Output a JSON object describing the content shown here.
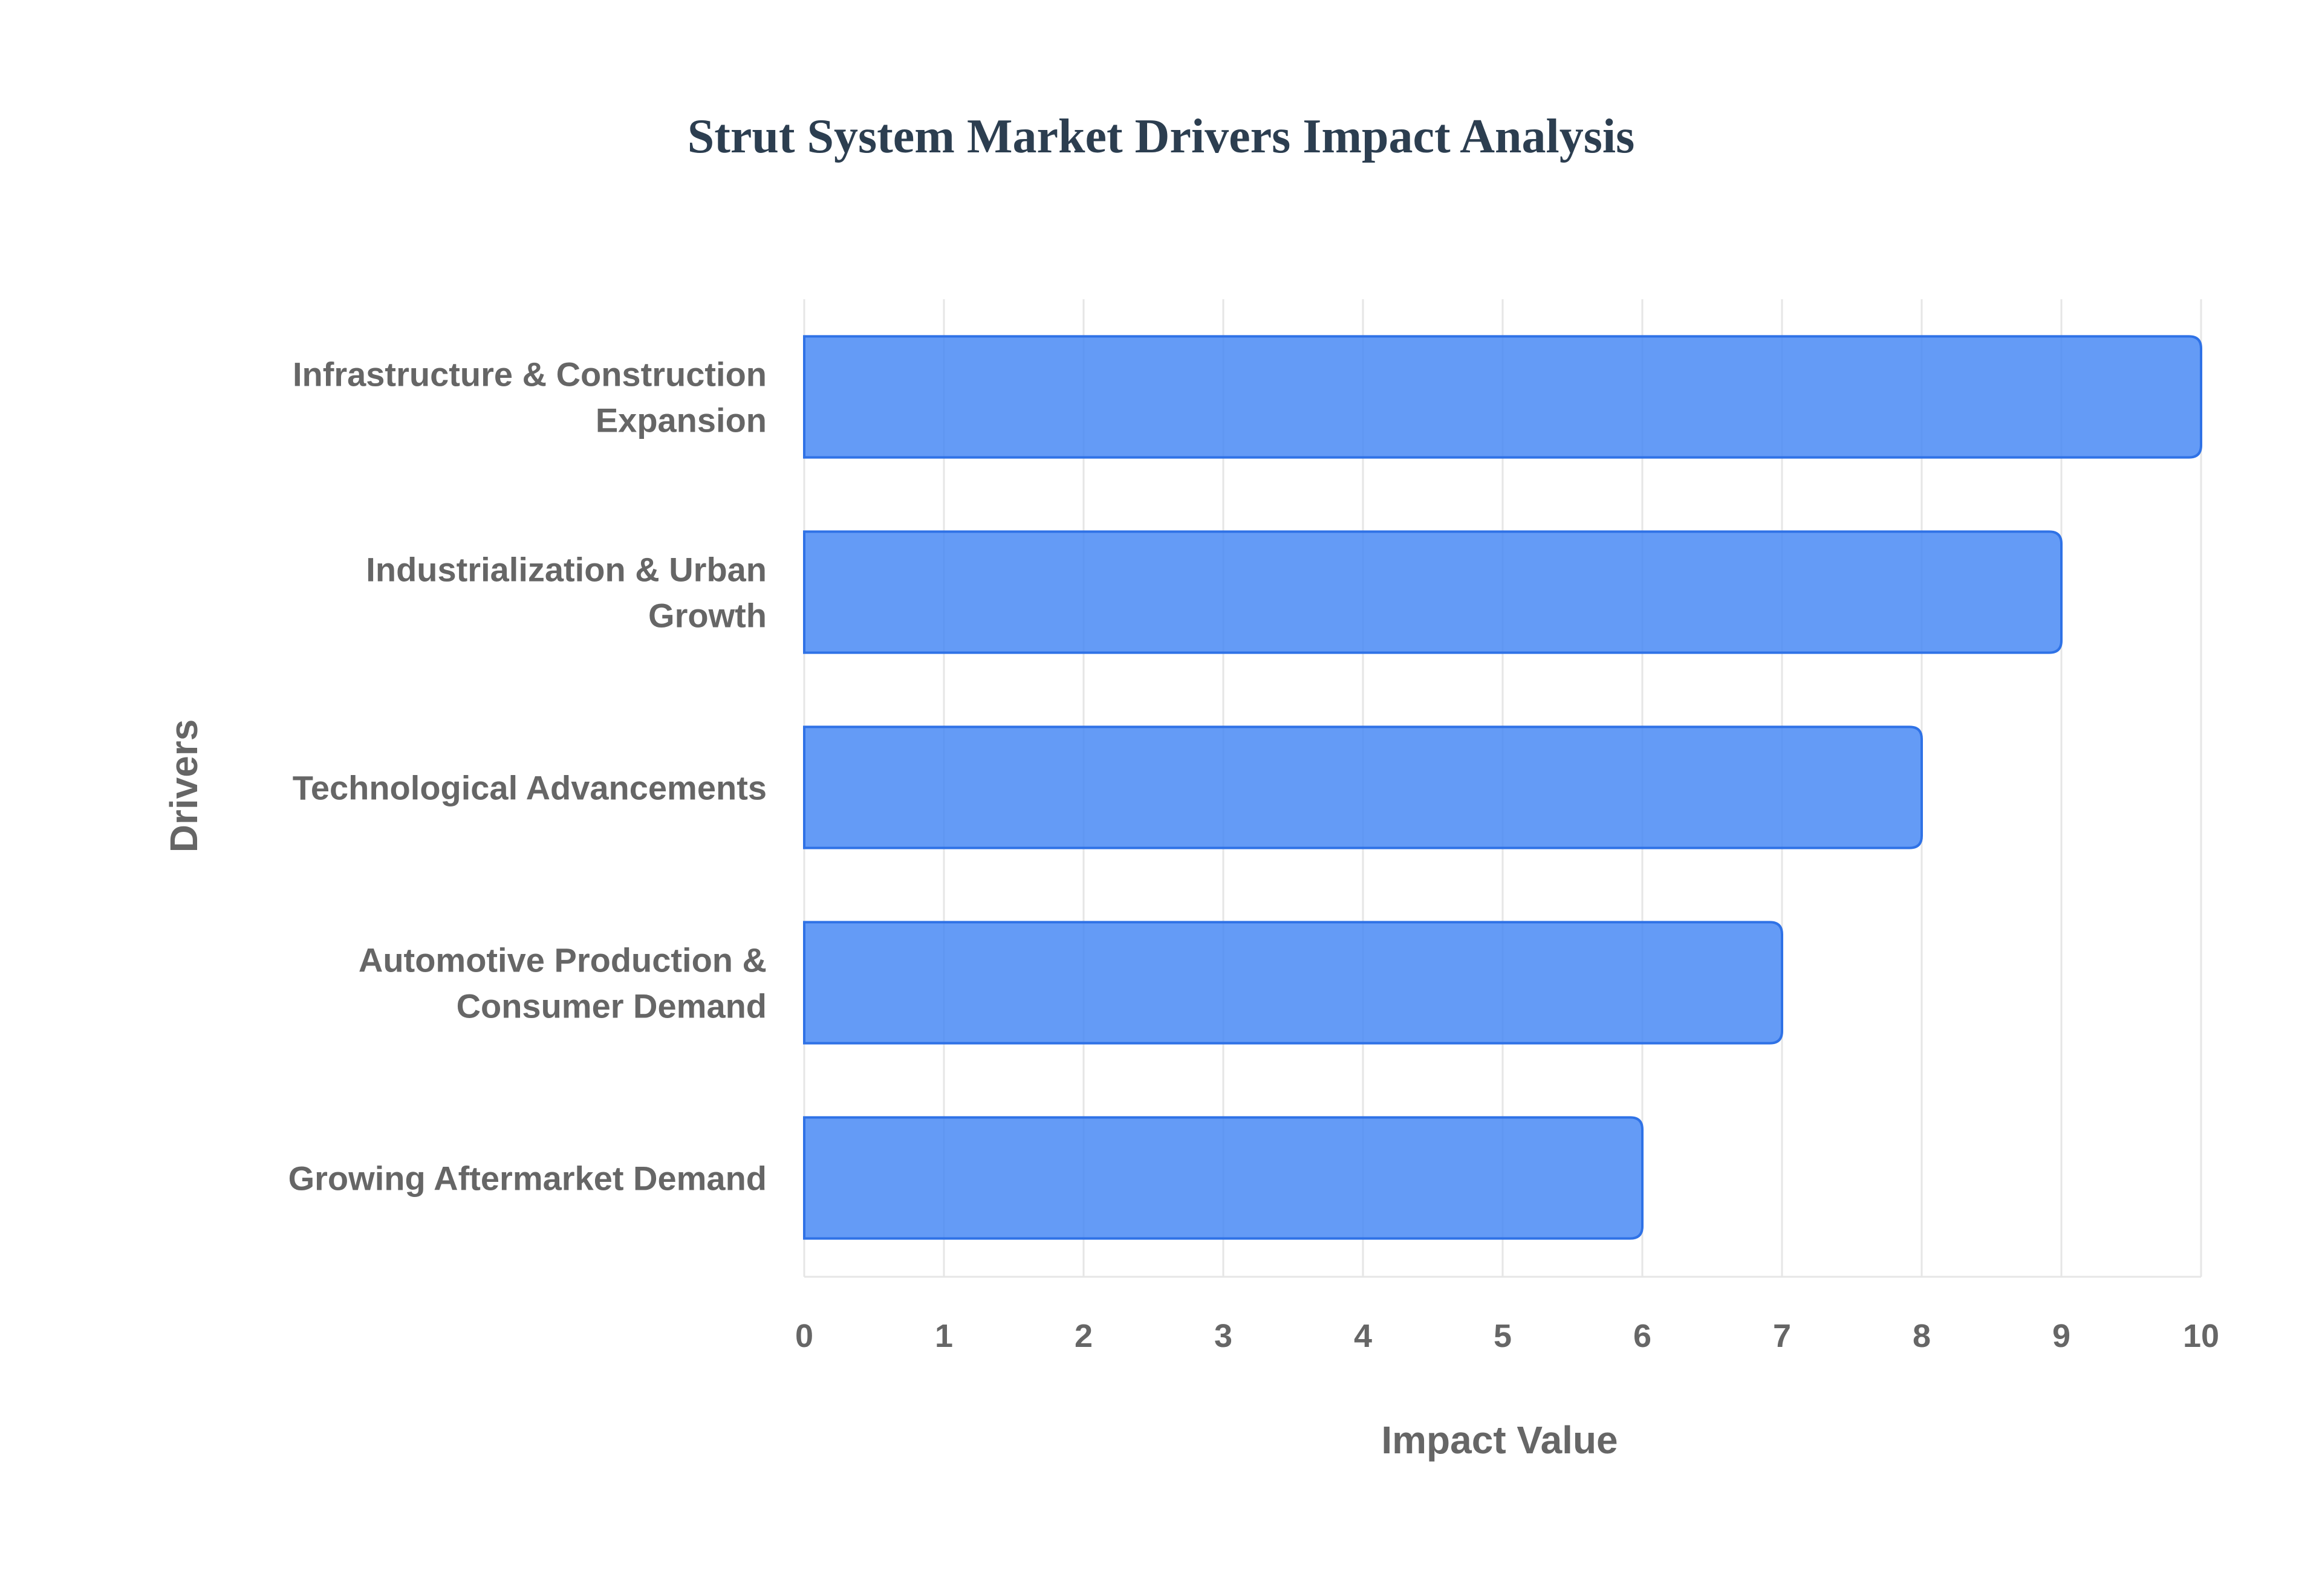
{
  "chart_data": {
    "type": "bar",
    "orientation": "horizontal",
    "title": "Strut System Market Drivers Impact Analysis",
    "xlabel": "Impact Value",
    "ylabel": "Drivers",
    "categories": [
      [
        "Infrastructure & Construction",
        "Expansion"
      ],
      [
        "Industrialization & Urban",
        "Growth"
      ],
      [
        "Technological Advancements"
      ],
      [
        "Automotive Production &",
        "Consumer Demand"
      ],
      [
        "Growing Aftermarket Demand"
      ]
    ],
    "values": [
      10,
      9,
      8,
      7,
      6
    ],
    "xlim": [
      0,
      10
    ],
    "xticks": [
      "0",
      "1",
      "2",
      "3",
      "4",
      "5",
      "6",
      "7",
      "8",
      "9",
      "10"
    ],
    "grid": true,
    "legend": "none",
    "colors": {
      "bar_fill": "#4285f4",
      "bar_stroke": "#2f72e6",
      "grid": "#e6e6e6",
      "text": "#666666",
      "title": "#2c3e50"
    }
  }
}
